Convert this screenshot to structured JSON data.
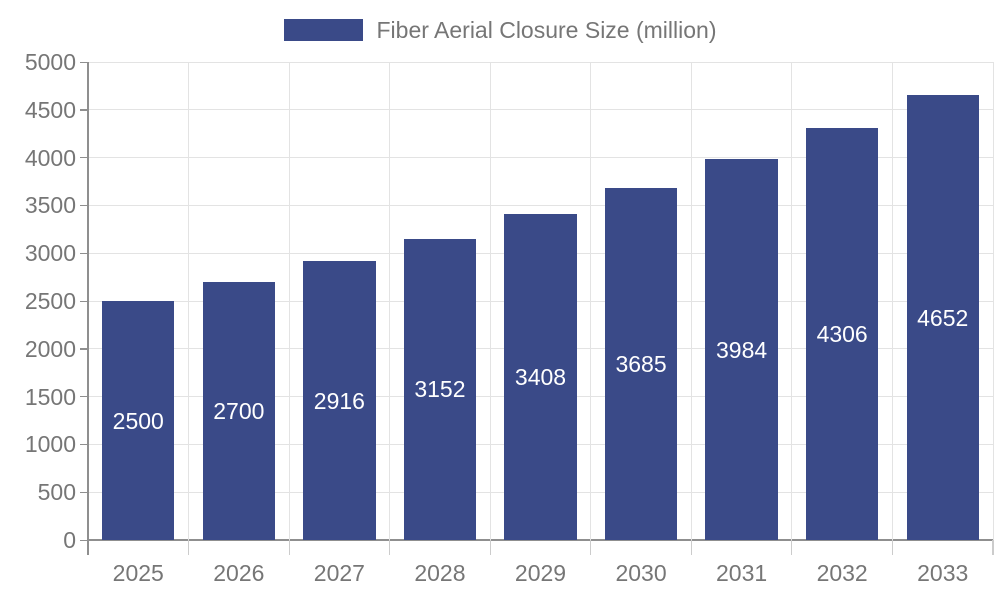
{
  "legend": {
    "label": "Fiber Aerial Closure Size (million)"
  },
  "colors": {
    "bar": "#3A4A88",
    "bar_label": "#FFFFFF",
    "axis_line": "#8F8F8F",
    "grid_line": "#E3E3E3",
    "minor_tick": "#CCCCCC",
    "tick_text": "#767676",
    "legend_text": "#767676",
    "background": "#FFFFFF"
  },
  "chart_data": {
    "type": "bar",
    "title": "Fiber Aerial Closure Size (million)",
    "series_name": "Fiber Aerial Closure Size (million)",
    "categories": [
      "2025",
      "2026",
      "2027",
      "2028",
      "2029",
      "2030",
      "2031",
      "2032",
      "2033"
    ],
    "values": [
      2500,
      2700,
      2916,
      3152,
      3408,
      3685,
      3984,
      4306,
      4652
    ],
    "xlabel": "",
    "ylabel": "",
    "ylim": [
      0,
      5000
    ],
    "ytick_step": 500,
    "yticks": [
      0,
      500,
      1000,
      1500,
      2000,
      2500,
      3000,
      3500,
      4000,
      4500,
      5000
    ],
    "grid": true,
    "legend_position": "top",
    "bar_label_position": "inside-center",
    "bar_label_color": "#FFFFFF"
  }
}
